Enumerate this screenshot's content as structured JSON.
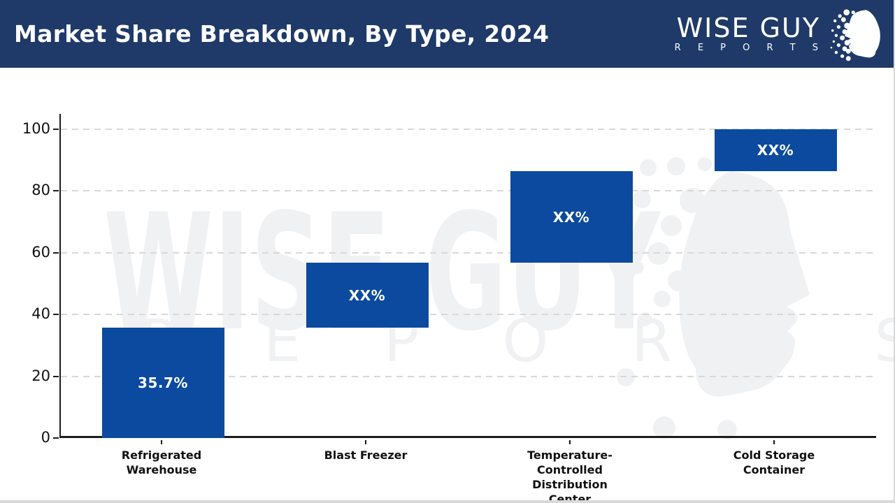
{
  "header": {
    "title": "Market Share Breakdown, By Type, 2024",
    "bg_color": "#1f3a68",
    "logo": {
      "name": "WISE GUY",
      "sub": "R E P O R T S"
    }
  },
  "watermark": {
    "line1": "WISE GUY",
    "line2": "R E P O R T S",
    "color": "#f0f1f3"
  },
  "chart_data": {
    "type": "bar",
    "subtype": "waterfall",
    "title": "Market Share Breakdown, By Type, 2024",
    "xlabel": "",
    "ylabel": "",
    "ylim": [
      0,
      105
    ],
    "yticks": [
      0,
      20,
      40,
      60,
      80,
      100
    ],
    "grid": "horizontal-dashed",
    "legend": "none",
    "bar_color": "#0b4a9f",
    "bar_label_color": "#ffffff",
    "axis_color": "#1c1c1c",
    "categories": [
      {
        "label": "Refrigerated Warehouse",
        "lines": [
          "Refrigerated",
          "Warehouse"
        ]
      },
      {
        "label": "Blast Freezer",
        "lines": [
          "Blast Freezer"
        ]
      },
      {
        "label": "Temperature-Controlled Distribution Center",
        "lines": [
          "Temperature-",
          "Controlled",
          "Distribution",
          "Center"
        ]
      },
      {
        "label": "Cold Storage Container",
        "lines": [
          "Cold Storage",
          "Container"
        ]
      }
    ],
    "segments": [
      {
        "category": "Refrigerated Warehouse",
        "start": 0,
        "end": 35.7,
        "label": "35.7%"
      },
      {
        "category": "Blast Freezer",
        "start": 35.7,
        "end": 56.7,
        "label": "XX%"
      },
      {
        "category": "Temperature-Controlled Distribution Center",
        "start": 56.7,
        "end": 86.4,
        "label": "XX%"
      },
      {
        "category": "Cold Storage Container",
        "start": 86.4,
        "end": 100,
        "label": "XX%"
      }
    ]
  }
}
